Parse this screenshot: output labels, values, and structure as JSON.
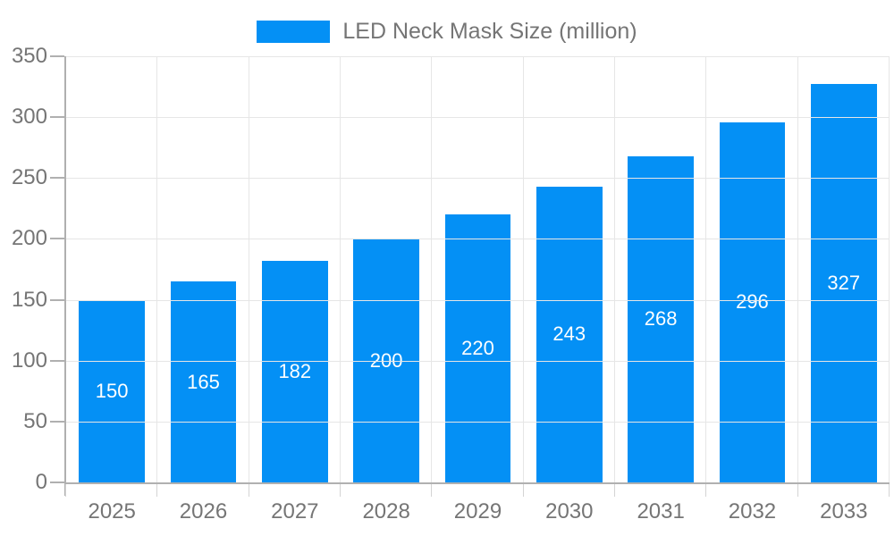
{
  "legend": {
    "label": "LED Neck Mask Size (million)"
  },
  "colors": {
    "bar": "#0490f5",
    "axis": "#b0b0b0",
    "grid": "#e6e6e6",
    "tick": "#d4d4d4",
    "label_text": "#757575",
    "bar_label": "#ffffff",
    "background": "#ffffff"
  },
  "chart_data": {
    "type": "bar",
    "title": "LED Neck Mask Size (million)",
    "series_name": "LED Neck Mask Size (million)",
    "categories": [
      "2025",
      "2026",
      "2027",
      "2028",
      "2029",
      "2030",
      "2031",
      "2032",
      "2033"
    ],
    "values": [
      150,
      165,
      182,
      200,
      220,
      243,
      268,
      296,
      327
    ],
    "xlabel": "",
    "ylabel": "",
    "ylim": [
      0,
      350
    ],
    "yticks": [
      0,
      50,
      100,
      150,
      200,
      250,
      300,
      350
    ],
    "grid": true,
    "legend_position": "top-center",
    "value_labels": "inside-center"
  }
}
